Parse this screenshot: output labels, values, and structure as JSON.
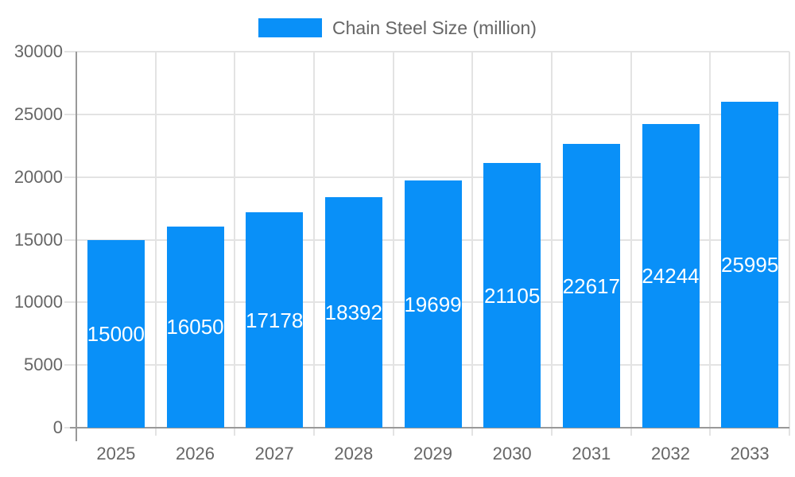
{
  "chart_data": {
    "type": "bar",
    "title": "",
    "legend": "Chain Steel Size (million)",
    "legend_position": "top",
    "categories": [
      "2025",
      "2026",
      "2027",
      "2028",
      "2029",
      "2030",
      "2031",
      "2032",
      "2033"
    ],
    "series": [
      {
        "name": "Chain Steel Size (million)",
        "values": [
          15000,
          16050,
          17178,
          18392,
          19699,
          21105,
          22617,
          24244,
          25995
        ]
      }
    ],
    "data_labels": [
      "15000",
      "16050",
      "17178",
      "18392",
      "19699",
      "21105",
      "22617",
      "24244",
      "25995"
    ],
    "xlabel": "",
    "ylabel": "",
    "ylim": [
      0,
      30000
    ],
    "yticks": [
      0,
      5000,
      10000,
      15000,
      20000,
      25000,
      30000
    ],
    "ytick_labels": [
      "0",
      "5000",
      "10000",
      "15000",
      "20000",
      "25000",
      "30000"
    ],
    "grid": true,
    "colors": {
      "bar": "#0990f8",
      "grid": "#e3e3e3",
      "axis": "#999999",
      "tick_text": "#666666",
      "legend_text": "#666666",
      "bar_label": "#ffffff",
      "background": "#ffffff"
    }
  }
}
